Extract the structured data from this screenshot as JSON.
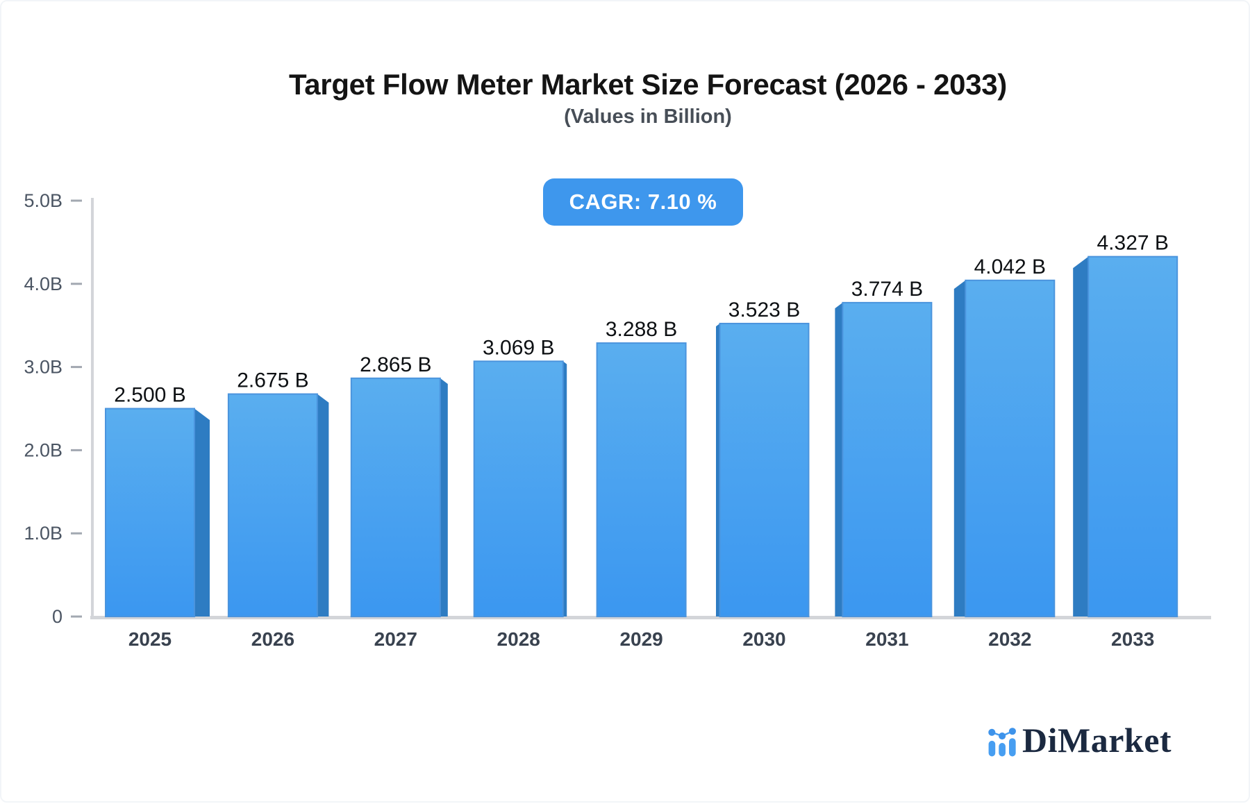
{
  "header": {
    "title": "Target Flow Meter Market Size Forecast (2026 - 2033)",
    "subtitle": "(Values in Billion)",
    "cagr_badge": "CAGR: 7.10 %"
  },
  "branding": {
    "logo_text": "DiMarket",
    "logo_icon": "bar-chart-logo-icon"
  },
  "colors": {
    "badge_bg": "#3e97ed",
    "badge_text": "#ffffff",
    "brand_icon_blue": "#479ef1",
    "brand_dot_blue": "#3e93ea",
    "brand_text_navy": "#1b2940"
  },
  "chart_data": {
    "type": "bar",
    "title": "Target Flow Meter Market Size Forecast (2026 - 2033)",
    "subtitle": "(Values in Billion)",
    "unit": "Billion",
    "cagr": "7.10 %",
    "categories": [
      "2025",
      "2026",
      "2027",
      "2028",
      "2029",
      "2030",
      "2031",
      "2032",
      "2033"
    ],
    "values": [
      2.5,
      2.675,
      2.865,
      3.069,
      3.288,
      3.523,
      3.774,
      4.042,
      4.327
    ],
    "value_labels": [
      "2.500 B",
      "2.675 B",
      "2.865 B",
      "3.069 B",
      "3.288 B",
      "3.523 B",
      "3.774 B",
      "4.042 B",
      "4.327 B"
    ],
    "ylim": [
      0,
      5
    ],
    "y_ticks": [
      {
        "value": 0,
        "label": "0"
      },
      {
        "value": 1,
        "label": "1.0B"
      },
      {
        "value": 2,
        "label": "2.0B"
      },
      {
        "value": 3,
        "label": "3.0B"
      },
      {
        "value": 4,
        "label": "4.0B"
      },
      {
        "value": 5,
        "label": "5.0B"
      }
    ],
    "grid": false,
    "legend": null,
    "colors": {
      "face_top": "#5aaeef",
      "face_bottom": "#3b97f0",
      "face_edge": "#4b94dd",
      "side": "#2e7cc2",
      "axis": "#d3d5d9",
      "tick": "#a2a8b1",
      "tick_label": "#4b5563",
      "x_label": "#39424f",
      "value_label": "#0d1013"
    }
  }
}
